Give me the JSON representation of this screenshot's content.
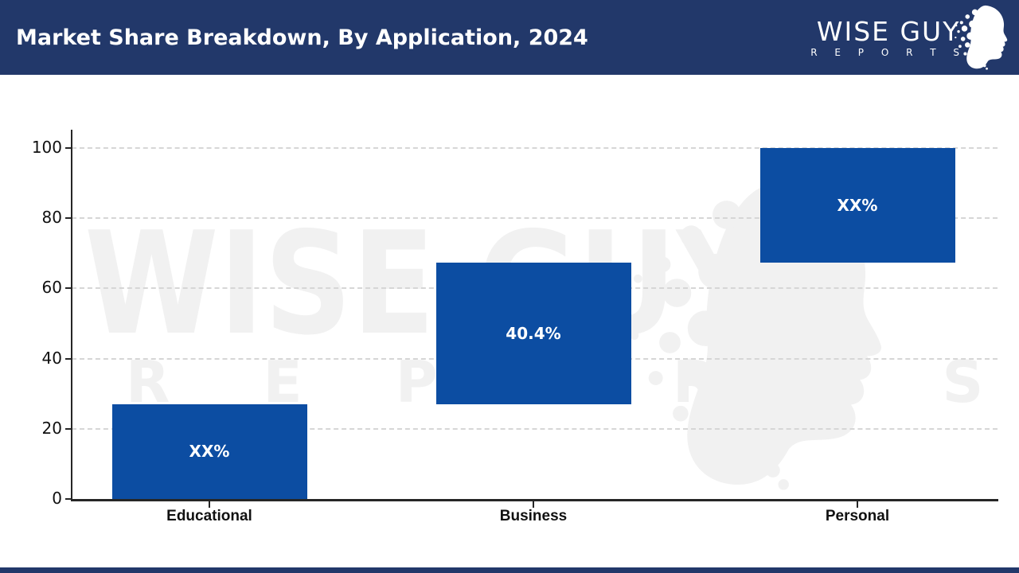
{
  "header": {
    "title": "Market Share Breakdown, By Application, 2024",
    "logo": {
      "name": "WISE GUY",
      "sub": "R E P O R T S"
    }
  },
  "watermark": {
    "name": "WISE GUY",
    "sub": "R E P O R T S"
  },
  "chart_data": {
    "type": "bar",
    "subtype": "floating-stacked-percentage",
    "title": "Market Share Breakdown, By Application, 2024",
    "categories": [
      "Educational",
      "Business",
      "Personal"
    ],
    "segments": [
      {
        "category": "Educational",
        "start": 0,
        "end": 27.0,
        "value": 27.0,
        "label": "XX%"
      },
      {
        "category": "Business",
        "start": 27.0,
        "end": 67.4,
        "value": 40.4,
        "label": "40.4%"
      },
      {
        "category": "Personal",
        "start": 67.4,
        "end": 100,
        "value": 32.6,
        "label": "XX%"
      }
    ],
    "xlabel": "",
    "ylabel": "",
    "ylim": [
      0,
      100
    ],
    "yticks": [
      0,
      20,
      40,
      60,
      80,
      100
    ],
    "grid": "horizontal-dashed",
    "legend": "none"
  },
  "colors": {
    "header_bg": "#22386A",
    "footer_bg": "#22386A",
    "title_text": "#FFFFFF",
    "bar": "#0C4DA2",
    "watermark": "#F1F1F1",
    "gridline": "#D6D6D6",
    "axis": "#262626"
  }
}
